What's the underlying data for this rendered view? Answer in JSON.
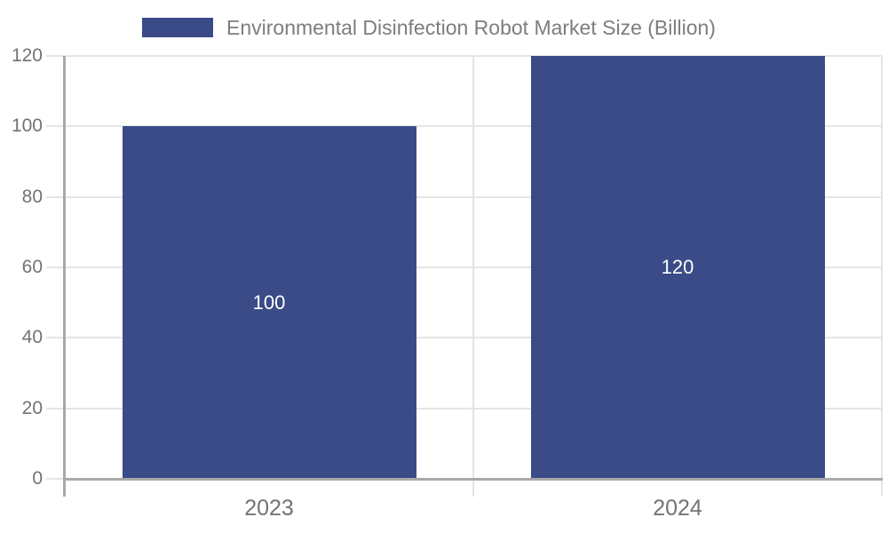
{
  "chart_data": {
    "type": "bar",
    "title": "Environmental Disinfection Robot Market Size (Billion)",
    "legend": {
      "label": "Environmental Disinfection Robot Market Size (Billion)",
      "position": "top"
    },
    "categories": [
      "2023",
      "2024"
    ],
    "values": [
      100,
      120
    ],
    "value_labels": [
      "100",
      "120"
    ],
    "xlabel": "",
    "ylabel": "",
    "ylim": [
      0,
      120
    ],
    "yticks": [
      0,
      20,
      40,
      60,
      80,
      100,
      120
    ],
    "grid": true,
    "colors": {
      "bar": "#3a4b87",
      "value_label": "#ffffff",
      "axis_line": "#a9a9a9",
      "gridline": "#e5e5e5",
      "tick_label": "#737373",
      "legend_text": "#7d7d7d",
      "background": "#ffffff"
    }
  }
}
